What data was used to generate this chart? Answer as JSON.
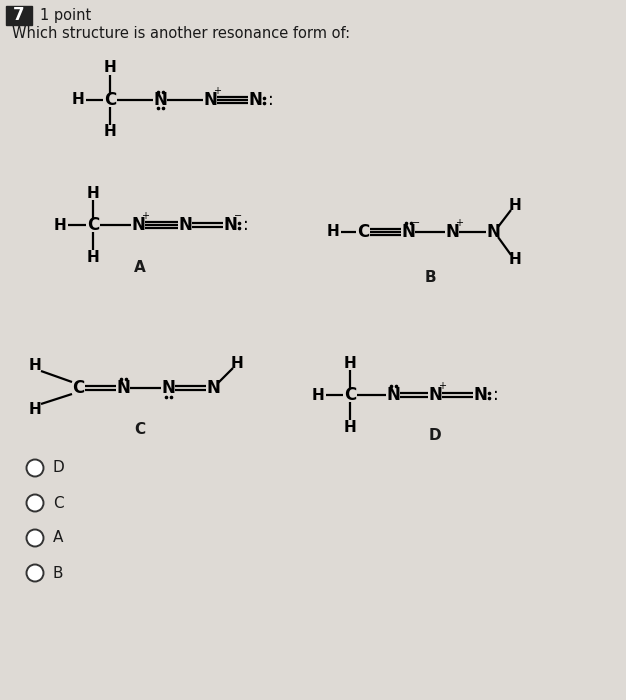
{
  "bg_color": "#dedad5",
  "title_num": "7",
  "title_points": "1 point",
  "question": "Which structure is another resonance form of:",
  "font_color": "#1a1a1a",
  "radio_options": [
    "D",
    "C",
    "A",
    "B"
  ],
  "fig_w": 6.26,
  "fig_h": 7.0,
  "dpi": 100
}
